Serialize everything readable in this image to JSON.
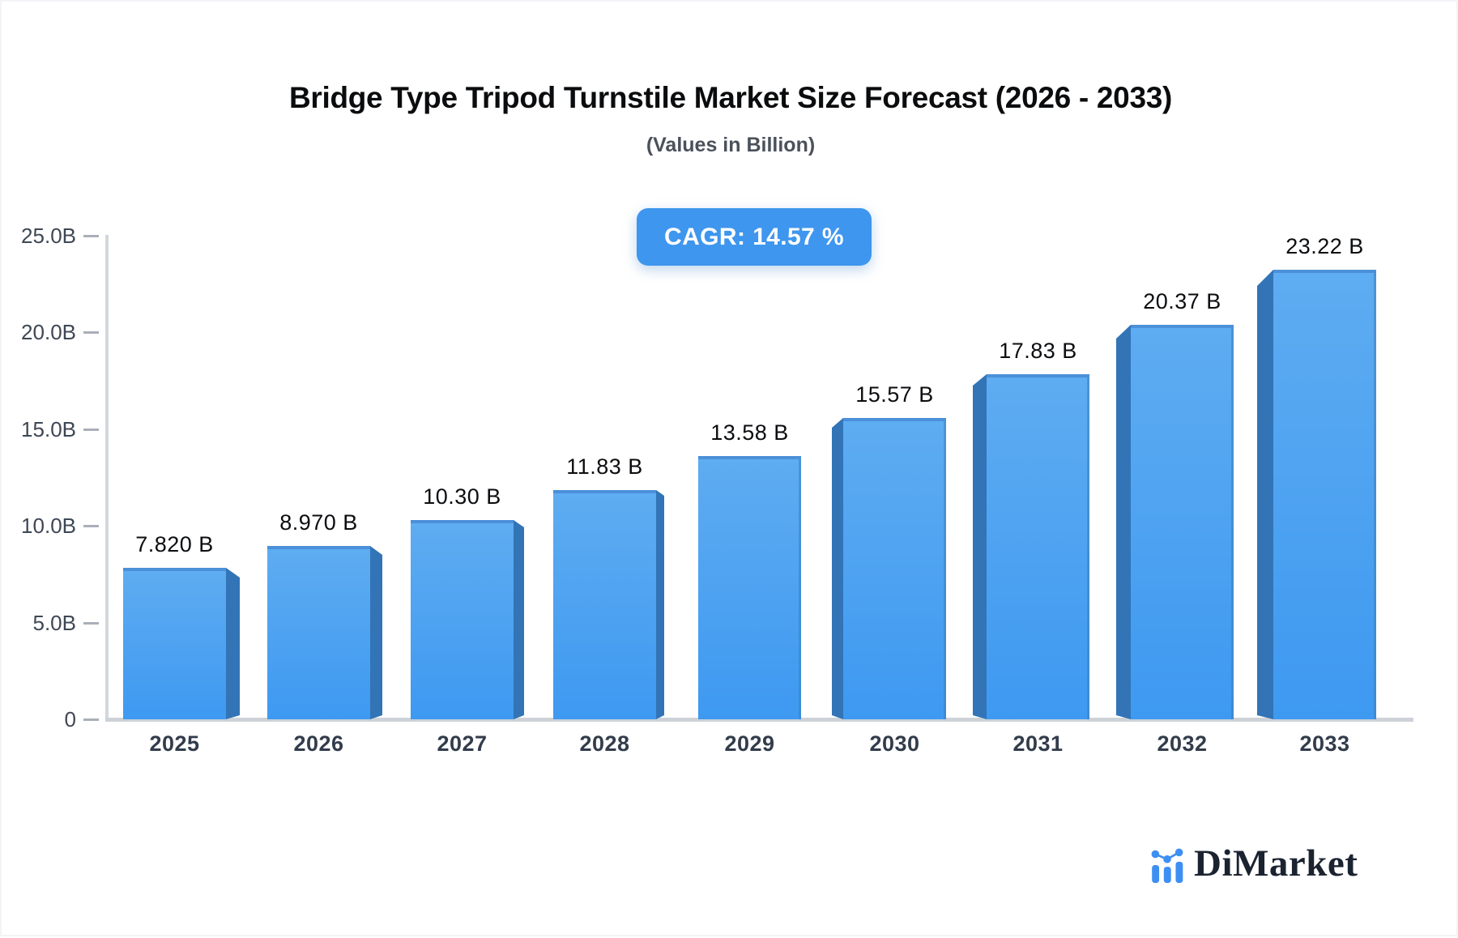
{
  "title": "Bridge Type Tripod Turnstile Market Size Forecast (2026 - 2033)",
  "subtitle": "(Values in Billion)",
  "badge": {
    "label": "CAGR: 14.57 %",
    "bg_color": "#3e96ee",
    "text_color": "#ffffff"
  },
  "chart_data": {
    "type": "bar",
    "title": "Bridge Type Tripod Turnstile Market Size Forecast (2026 - 2033)",
    "subtitle": "(Values in Billion)",
    "cagr": "14.57 %",
    "unit": "Billion",
    "categories": [
      "2025",
      "2026",
      "2027",
      "2028",
      "2029",
      "2030",
      "2031",
      "2032",
      "2033"
    ],
    "values": [
      7.82,
      8.97,
      10.3,
      11.83,
      13.58,
      15.57,
      17.83,
      20.37,
      23.22
    ],
    "value_labels": [
      "7.820 B",
      "8.970 B",
      "10.30 B",
      "11.83 B",
      "13.58 B",
      "15.57 B",
      "17.83 B",
      "20.37 B",
      "23.22 B"
    ],
    "ylim": [
      0,
      25
    ],
    "yticks": [
      {
        "v": 0,
        "label": "0"
      },
      {
        "v": 5,
        "label": "5.0B"
      },
      {
        "v": 10,
        "label": "10.0B"
      },
      {
        "v": 15,
        "label": "15.0B"
      },
      {
        "v": 20,
        "label": "20.0B"
      },
      {
        "v": 25,
        "label": "25.0B"
      }
    ],
    "grid": false,
    "legend": "none",
    "bar_face_top_color": "#5eacf1",
    "bar_face_bottom_color": "#3e99f1",
    "bar_side_color": "#3274b6",
    "bar_cap_color": "#4b90d8",
    "axis_color": "#cdd2d8"
  },
  "logo": {
    "text": "DiMarket",
    "icon": "mini-bar-chart-logo-icon",
    "icon_color": "#3e8ff2",
    "text_color": "#1b2330"
  }
}
